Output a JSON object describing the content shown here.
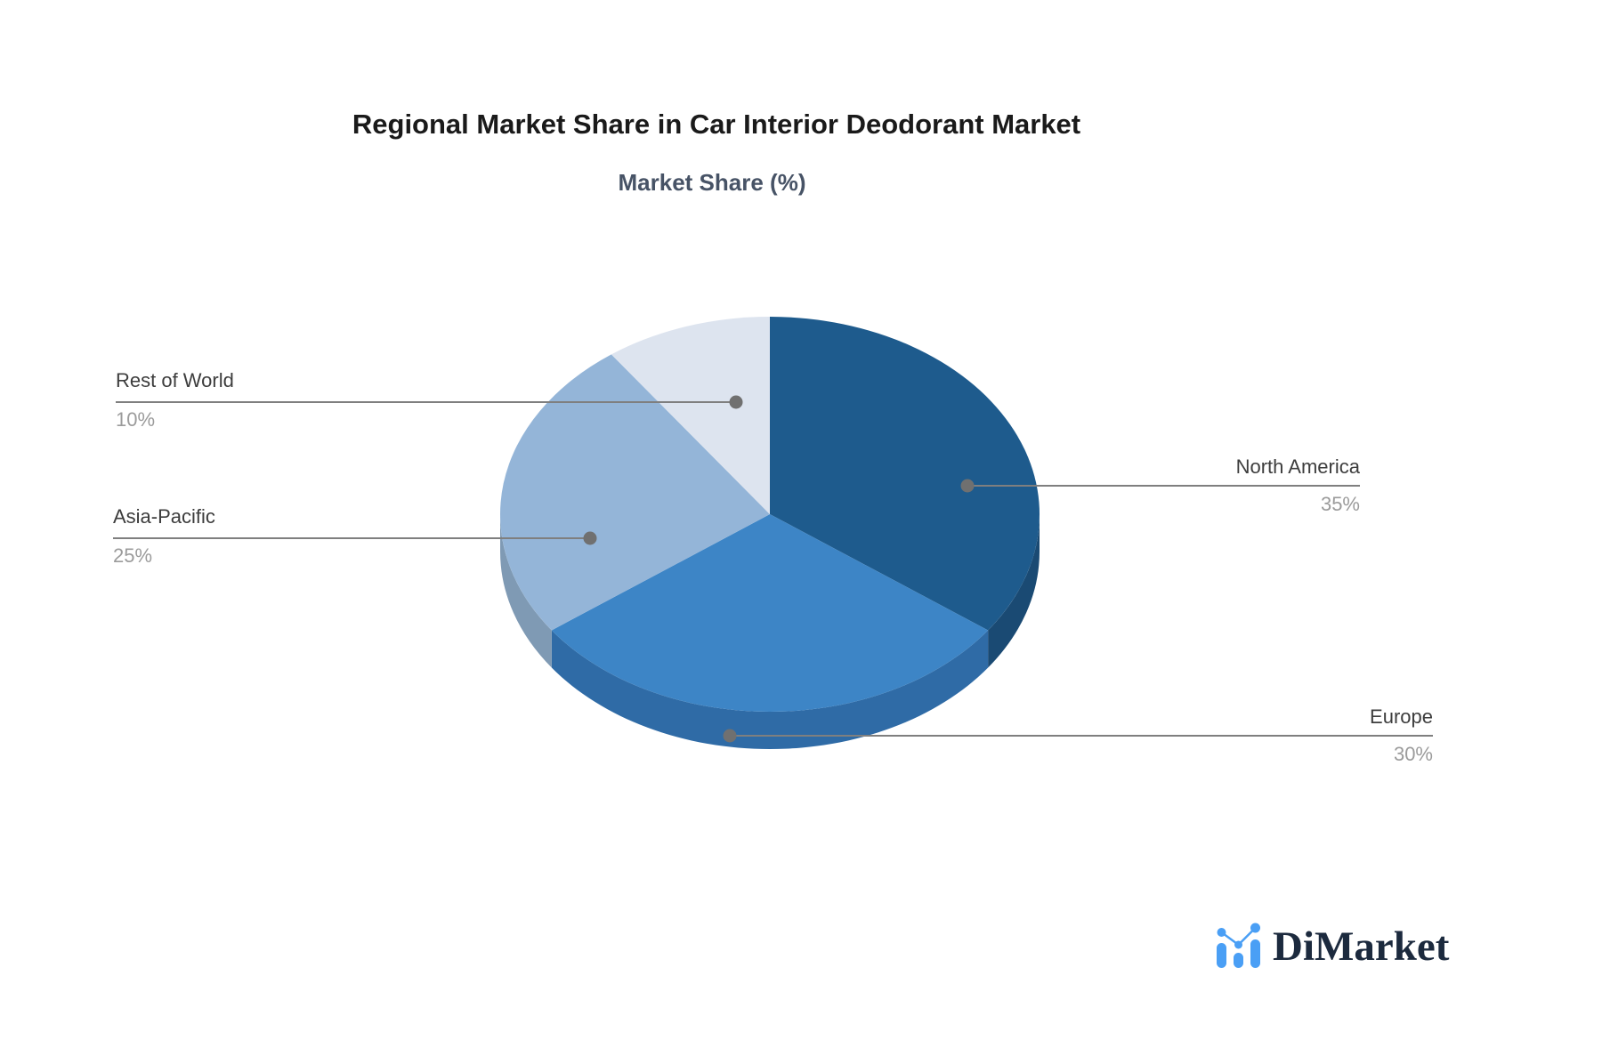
{
  "chart": {
    "title": "Regional Market Share in Car Interior Deodorant Market",
    "subtitle": "Market Share (%)"
  },
  "chart_data": {
    "type": "pie",
    "style": "3d",
    "title": "Regional Market Share in Car Interior Deodorant Market",
    "subtitle": "Market Share (%)",
    "unit": "%",
    "legend_position": "none",
    "start_angle_deg": 90,
    "direction": "clockwise",
    "segments": [
      {
        "name": "North America",
        "value": 35,
        "pct_label": "35%",
        "color": "#1e5b8d",
        "side_color": "#1a4a73",
        "label_side": "right"
      },
      {
        "name": "Europe",
        "value": 30,
        "pct_label": "30%",
        "color": "#3d85c6",
        "side_color": "#2f6ba6",
        "label_side": "right"
      },
      {
        "name": "Asia-Pacific",
        "value": 25,
        "pct_label": "25%",
        "color": "#94b5d8",
        "side_color": "#7f9ab4",
        "label_side": "left"
      },
      {
        "name": "Rest of World",
        "value": 10,
        "pct_label": "10%",
        "color": "#dde4ef",
        "label_side": "left"
      }
    ]
  },
  "branding": {
    "logo_text": "DiMarket",
    "logo_icon": "bar-line-chart-icon",
    "logo_icon_color": "#4a9ff5",
    "logo_text_color": "#1c2a3e"
  },
  "colors": {
    "background": "#ffffff",
    "title_text": "#1a1a1a",
    "subtitle_text": "#475366",
    "label_name_text": "#3d3d3d",
    "label_pct_text": "#9b9b9b",
    "leader_line": "#7f7f7f",
    "leader_dot": "#707070"
  }
}
